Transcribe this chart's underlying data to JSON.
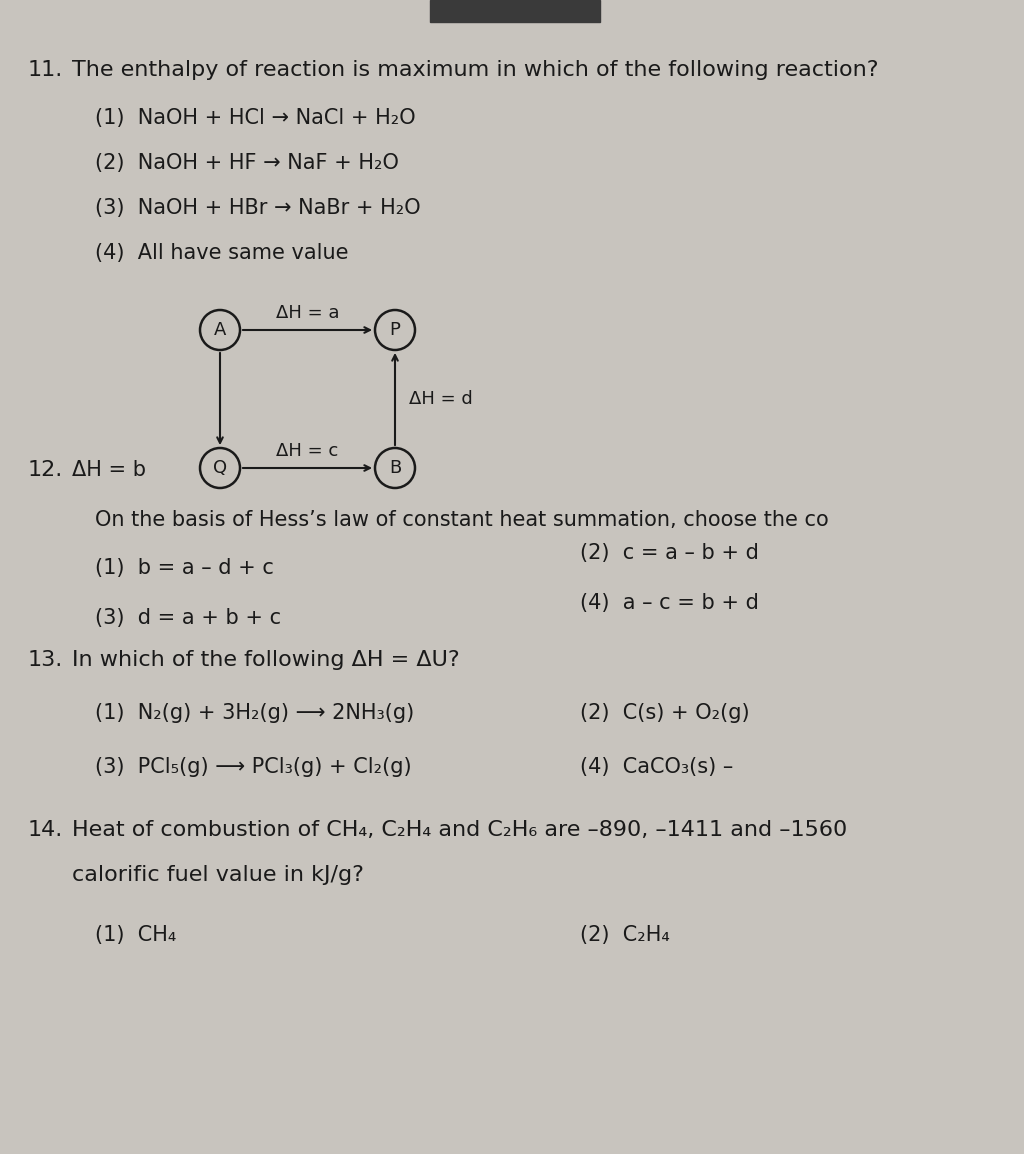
{
  "bg_color": "#c8c4be",
  "bg_color_top": "#b8b4ae",
  "text_color": "#1a1a1a",
  "q11_number": "11.",
  "q11_text": "The enthalpy of reaction is maximum in which of the following reaction?",
  "q11_options": [
    "(1)  NaOH + HCl → NaCl + H₂O",
    "(2)  NaOH + HF → NaF + H₂O",
    "(3)  NaOH + HBr → NaBr + H₂O",
    "(4)  All have same value"
  ],
  "q12_number": "12.",
  "q12_label": "ΔH = b",
  "q12_diagram": {
    "A_label": "A",
    "P_label": "P",
    "Q_label": "Q",
    "B_label": "B",
    "top_arrow": "ΔH = a",
    "right_arrow": "ΔH = d",
    "bottom_arrow": "ΔH = c"
  },
  "q12_hess_text": "On the basis of Hess’s law of constant heat summation, choose the co",
  "q12_options_left": [
    "(1)  b = a – d + c",
    "(3)  d = a + b + c"
  ],
  "q12_options_right": [
    "(2)  c = a – b + d",
    "(4)  a – c = b + d"
  ],
  "q13_number": "13.",
  "q13_text": "In which of the following ΔH = ΔU?",
  "q13_options_left": [
    "(1)  N₂(g) + 3H₂(g) ⟶ 2NH₃(g)",
    "(3)  PCl₅(g) ⟶ PCl₃(g) + Cl₂(g)"
  ],
  "q13_options_right": [
    "(2)  C(s) + O₂(g)",
    "(4)  CaCO₃(s) –"
  ],
  "q14_number": "14.",
  "q14_line1": "Heat of combustion of CH₄, C₂H₄ and C₂H₆ are –890, –1411 and –1560",
  "q14_line2": "calorific fuel value in kJ/g?",
  "q14_options_left": [
    "(1)  CH₄"
  ],
  "q14_options_right": [
    "(2)  C₂H₄"
  ],
  "top_bar_color": "#3a3a3a",
  "font_size_main": 16,
  "font_size_options": 15,
  "font_size_diagram": 13
}
